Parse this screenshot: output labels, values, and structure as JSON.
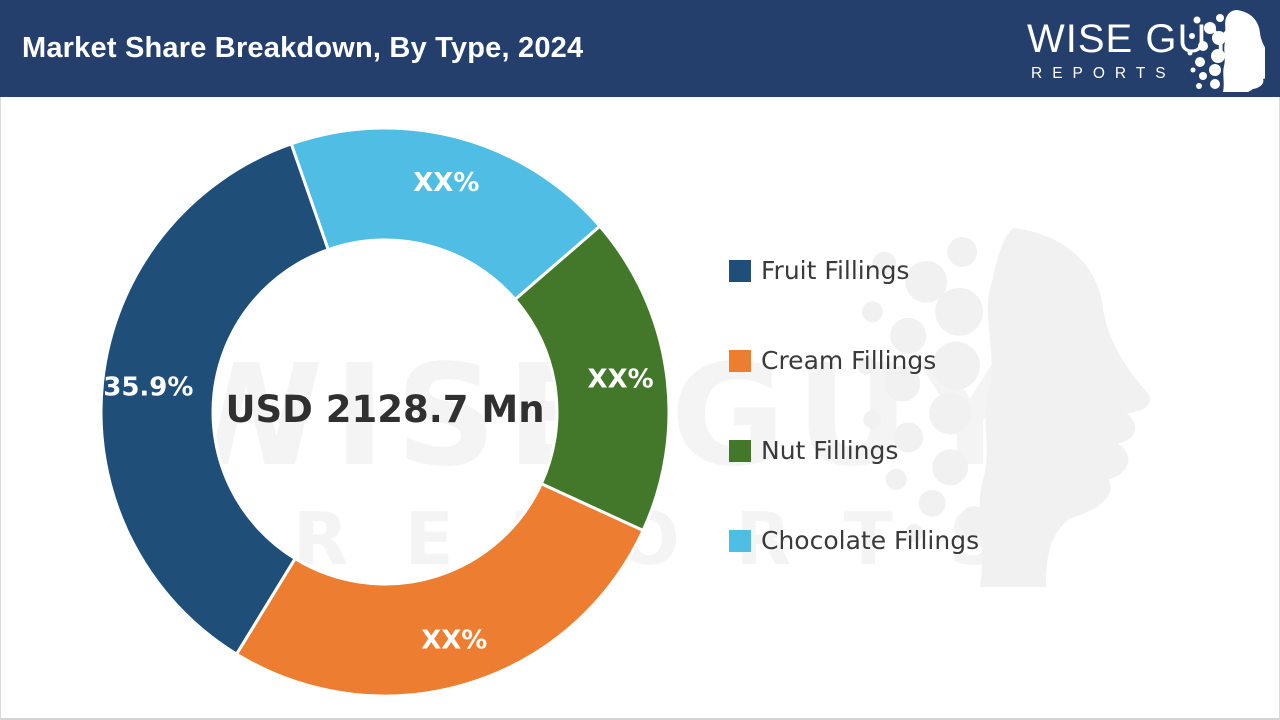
{
  "header": {
    "title": "Market Share Breakdown, By Type, 2024",
    "logo": {
      "name": "WISE GUY",
      "subtitle": "REPORTS"
    }
  },
  "watermark": {
    "line1": "WISE GUY",
    "line2": "REPORTS"
  },
  "chart_data": {
    "type": "donut",
    "title": "Market Share Breakdown, By Type, 2024",
    "center_label": "USD 2128.7 Mn",
    "start_angle_deg": 121.5,
    "inner_radius_ratio": 0.61,
    "legend_position": "right",
    "segments": [
      {
        "name": "Fruit Fillings",
        "label": "35.9%",
        "pct": 35.9,
        "color": "#1f4e79"
      },
      {
        "name": "Cream Fillings",
        "label": "XX%",
        "pct": 26.9,
        "color": "#ed7d31"
      },
      {
        "name": "Nut Fillings",
        "label": "XX%",
        "pct": 18.2,
        "color": "#43782a"
      },
      {
        "name": "Chocolate Fillings",
        "label": "XX%",
        "pct": 19.0,
        "color": "#4fbde4"
      }
    ],
    "colors": {
      "header_bg": "#253f6d",
      "center_text": "#303030",
      "legend_text": "#3a3a3a",
      "watermark": "#f4f4f4"
    }
  }
}
